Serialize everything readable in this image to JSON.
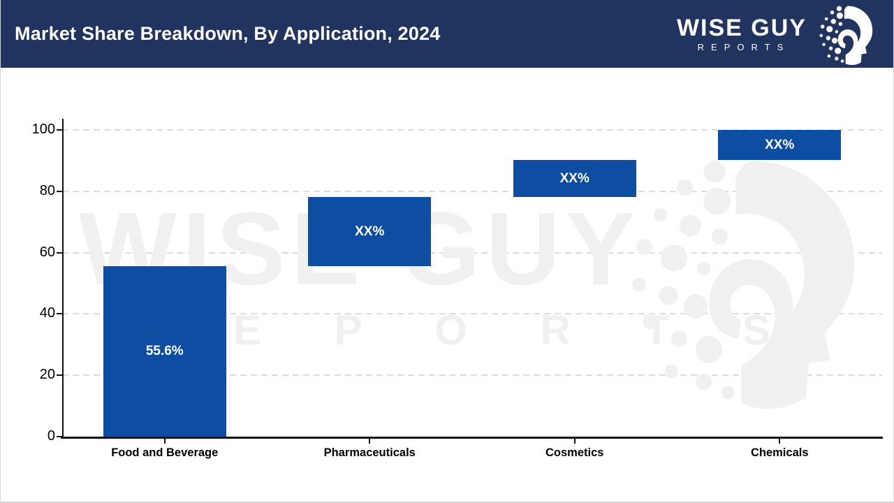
{
  "header": {
    "title": "Market Share Breakdown, By Application, 2024",
    "bg_color": "#213460",
    "logo": {
      "line1": "WISE GUY",
      "line2": "REPORTS",
      "head_icon": "dotted-head-profile"
    }
  },
  "watermark": {
    "line1": "WISE GUY",
    "line2": "REPORTS",
    "head_icon": "dotted-head-profile",
    "color": "#f0f0f0"
  },
  "chart_data": {
    "type": "bar",
    "subtype": "waterfall",
    "title": "",
    "xlabel": "",
    "ylabel": "",
    "categories": [
      "Food and Beverage",
      "Pharmaceuticals",
      "Cosmetics",
      "Chemicals"
    ],
    "segments": [
      {
        "category": "Food and Beverage",
        "start": 0,
        "end": 55.6,
        "label": "55.6%"
      },
      {
        "category": "Pharmaceuticals",
        "start": 55.6,
        "end": 78.1,
        "label": "XX%"
      },
      {
        "category": "Cosmetics",
        "start": 78.1,
        "end": 90.2,
        "label": "XX%"
      },
      {
        "category": "Chemicals",
        "start": 90.2,
        "end": 100,
        "label": "XX%"
      }
    ],
    "ylim": [
      0,
      100
    ],
    "yticks": [
      0,
      20,
      40,
      60,
      80,
      100
    ],
    "grid": "horizontal-dashed",
    "legend": "none",
    "bar_color": "#0d4da2",
    "bar_label_color": "#ffffff",
    "axis_color": "#111111",
    "gridline_color": "#dcdcdc"
  }
}
